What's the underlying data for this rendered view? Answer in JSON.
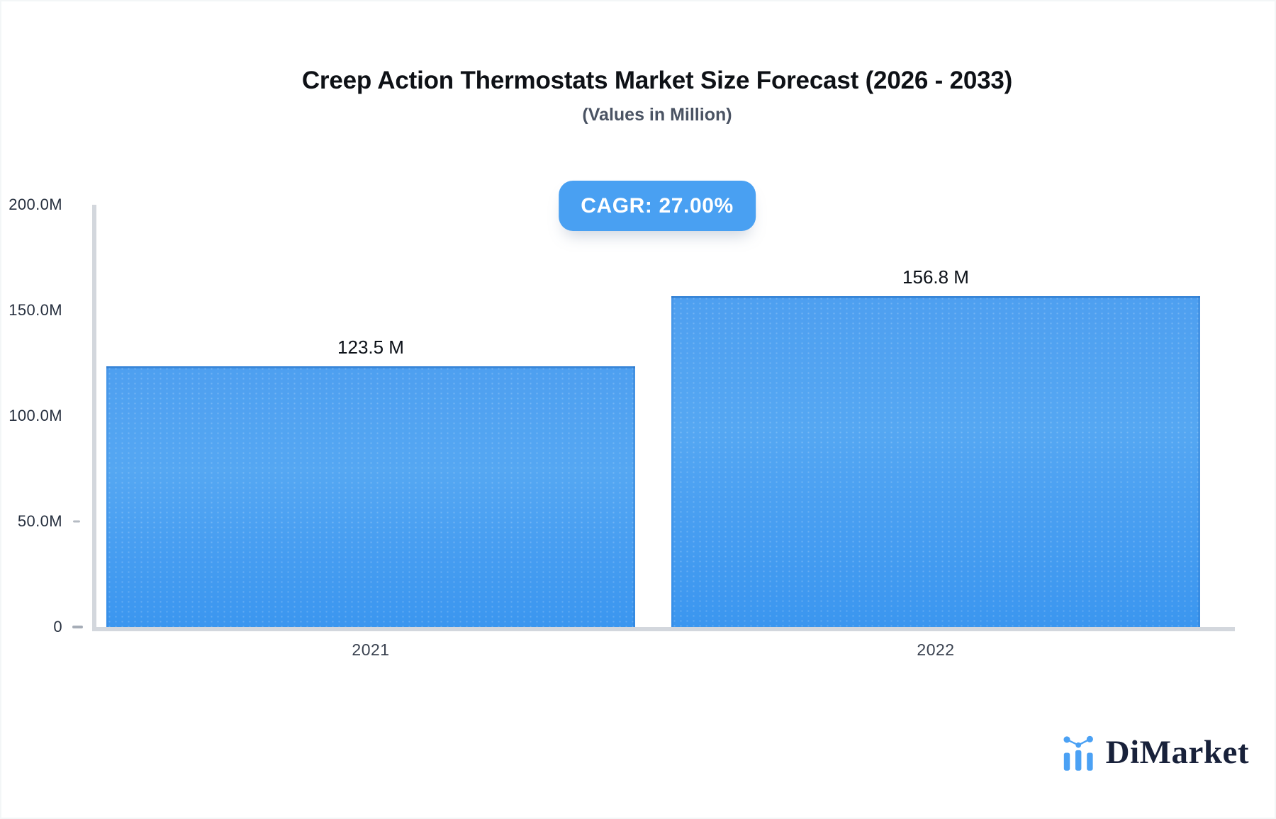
{
  "chart_data": {
    "type": "bar",
    "title": "Creep Action Thermostats Market Size Forecast (2026 - 2033)",
    "subtitle": "(Values in Million)",
    "categories": [
      "2021",
      "2022"
    ],
    "values": [
      123.5,
      156.8
    ],
    "value_labels": [
      "123.5 M",
      "156.8 M"
    ],
    "unit": "Million",
    "ylim": [
      0,
      200
    ],
    "y_ticks": [
      "200.0M",
      "150.0M",
      "100.0M",
      "50.0M",
      "0"
    ],
    "dash_tick_indices": [
      3,
      4
    ],
    "xlabel": "",
    "ylabel": "",
    "grid": false,
    "legend": false,
    "bar_color_top": "#4E9FF0",
    "bar_color_bottom": "#3B96EF",
    "axis_color": "#D3D7DD"
  },
  "badge": {
    "label": "CAGR: 27.00%",
    "color": "#49A0F2",
    "text_color": "#ffffff"
  },
  "footer": {
    "brand": "DiMarket",
    "brand_color": "#18213A",
    "icon": "bar-line-chart-icon",
    "icon_color": "#4BA1F4"
  }
}
